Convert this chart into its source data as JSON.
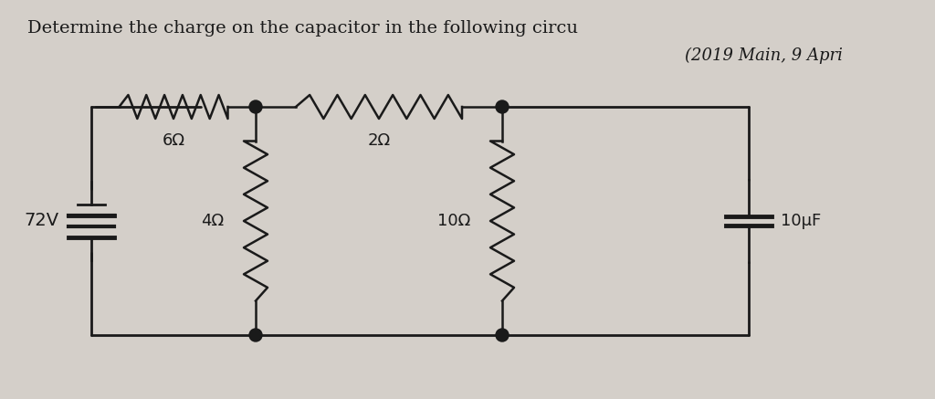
{
  "title": "Determine the charge on the capacitor in the following circu",
  "subtitle": "(2019 Main, 9 Apri",
  "background_color": "#d4cfc9",
  "text_color": "#1a1a1a",
  "voltage_label": "72V",
  "components": {
    "R1": "6Ω",
    "R2": "2Ω",
    "R3": "4Ω",
    "R4": "10Ω",
    "C1": "10μF"
  },
  "figsize": [
    10.24,
    4.37
  ],
  "dpi": 100
}
